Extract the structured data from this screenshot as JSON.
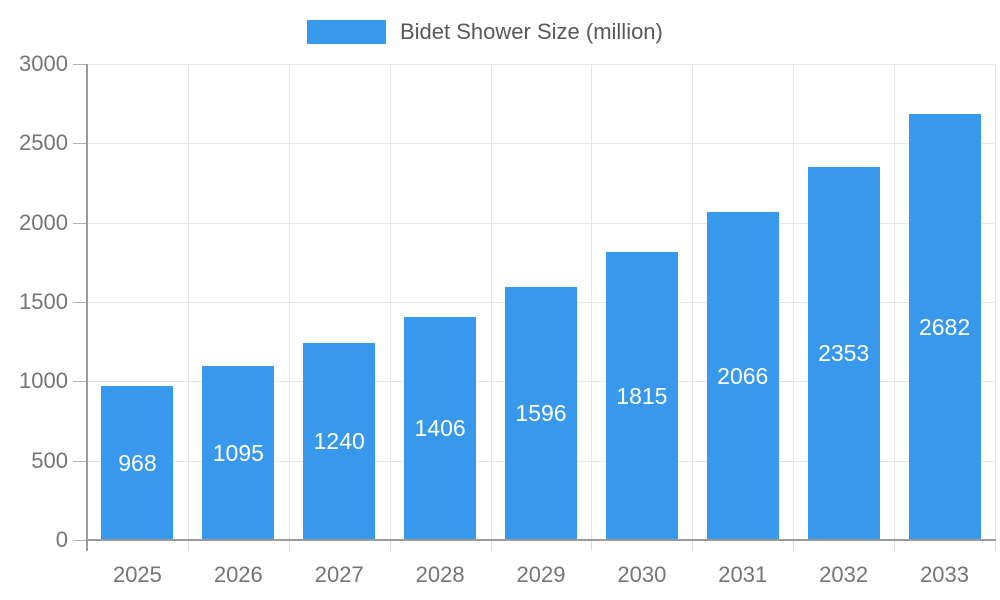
{
  "chart_data": {
    "type": "bar",
    "title": "",
    "legend": {
      "label": "Bidet Shower Size (million)",
      "position": "top"
    },
    "categories": [
      "2025",
      "2026",
      "2027",
      "2028",
      "2029",
      "2030",
      "2031",
      "2032",
      "2033"
    ],
    "series": [
      {
        "name": "Bidet Shower Size (million)",
        "values": [
          968,
          1095,
          1240,
          1406,
          1596,
          1815,
          2066,
          2353,
          2682
        ]
      }
    ],
    "bar_value_labels": [
      "968",
      "1095",
      "1240",
      "1406",
      "1596",
      "1815",
      "2066",
      "2353",
      "2682"
    ],
    "xlabel": "",
    "ylabel": "",
    "ylim": [
      0,
      3000
    ],
    "y_ticks": [
      0,
      500,
      1000,
      1500,
      2000,
      2500,
      3000
    ],
    "y_tick_labels": [
      "0",
      "500",
      "1000",
      "1500",
      "2000",
      "2500",
      "3000"
    ],
    "grid": "horizontal and vertical light gray gridlines",
    "colors": {
      "bar": "#3898ec",
      "bar_label_text": "#ffffff",
      "grid": "#e6e6e6",
      "axis_line": "#9a9a9a",
      "boundary_tick": "#d9d9d9",
      "y_tick_mark": "#b3b3b3",
      "tick_text": "#757575",
      "legend_text": "#595959",
      "background": "#ffffff"
    }
  }
}
